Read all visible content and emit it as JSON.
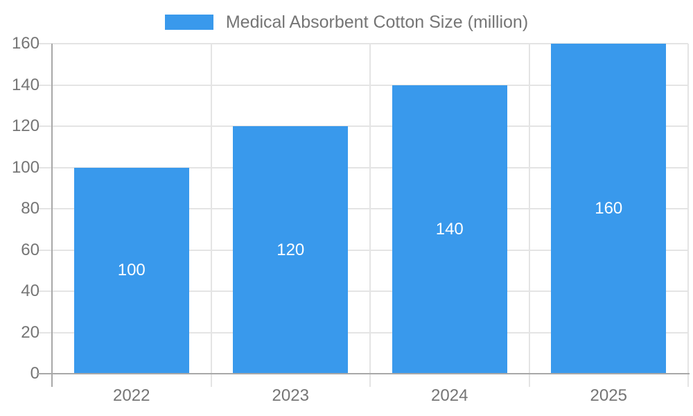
{
  "chart_data": {
    "type": "bar",
    "legend_label": "Medical Absorbent Cotton Size (million)",
    "categories": [
      "2022",
      "2023",
      "2024",
      "2025"
    ],
    "values": [
      100,
      120,
      140,
      160
    ],
    "data_labels": [
      "100",
      "120",
      "140",
      "160"
    ],
    "yticks": [
      0,
      20,
      40,
      60,
      80,
      100,
      120,
      140,
      160
    ],
    "ylim": [
      0,
      160
    ],
    "xlabel": "",
    "ylabel": "",
    "grid": true,
    "legend_position": "top-center",
    "colors": {
      "bar": "#3999ec",
      "grid": "#e4e4e4",
      "axis": "#a8a8a8",
      "tick_text": "#757575",
      "legend_text": "#757575",
      "data_label_text": "#ffffff",
      "background": "#ffffff"
    }
  }
}
